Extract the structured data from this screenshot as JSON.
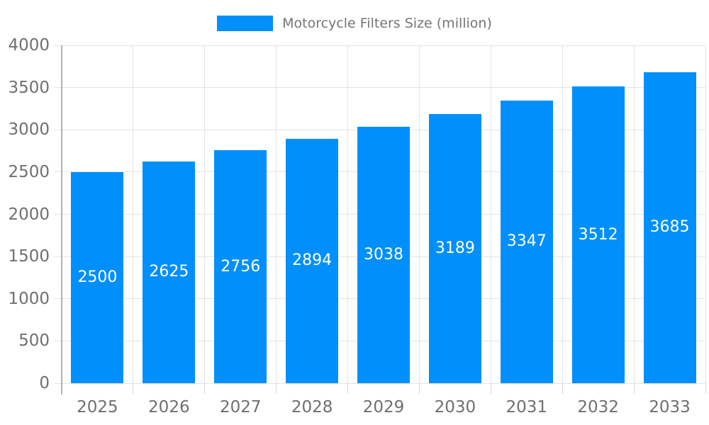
{
  "legend": {
    "label": "Motorcycle Filters Size (million)"
  },
  "colors": {
    "bar": "#008FFB",
    "bar_label": "#ffffff",
    "grid": "#e4e4e4",
    "tick": "#d6d6d6",
    "axis_line": "#b3b3b3",
    "axis_label": "#6f6f6f",
    "legend_text": "#757575",
    "background": "#ffffff"
  },
  "chart_data": {
    "type": "bar",
    "title": "Motorcycle Filters Size (million)",
    "categories": [
      "2025",
      "2026",
      "2027",
      "2028",
      "2029",
      "2030",
      "2031",
      "2032",
      "2033"
    ],
    "series": [
      {
        "name": "Motorcycle Filters Size (million)",
        "values": [
          2500,
          2625,
          2756,
          2894,
          3038,
          3189,
          3347,
          3512,
          3685
        ]
      }
    ],
    "values": [
      2500,
      2625,
      2756,
      2894,
      3038,
      3189,
      3347,
      3512,
      3685
    ],
    "bar_labels": [
      2500,
      2625,
      2756,
      2894,
      3038,
      3189,
      3347,
      3512,
      3685
    ],
    "xlabel": "",
    "ylabel": "",
    "ylim": [
      0,
      4000
    ],
    "ytick_step": 500,
    "ytick_labels": [
      "0",
      "500",
      "1000",
      "1500",
      "2000",
      "2500",
      "3000",
      "3500",
      "4000"
    ],
    "grid": true,
    "legend_position": "top-center",
    "bar_value_label_position": "center-of-bar"
  }
}
